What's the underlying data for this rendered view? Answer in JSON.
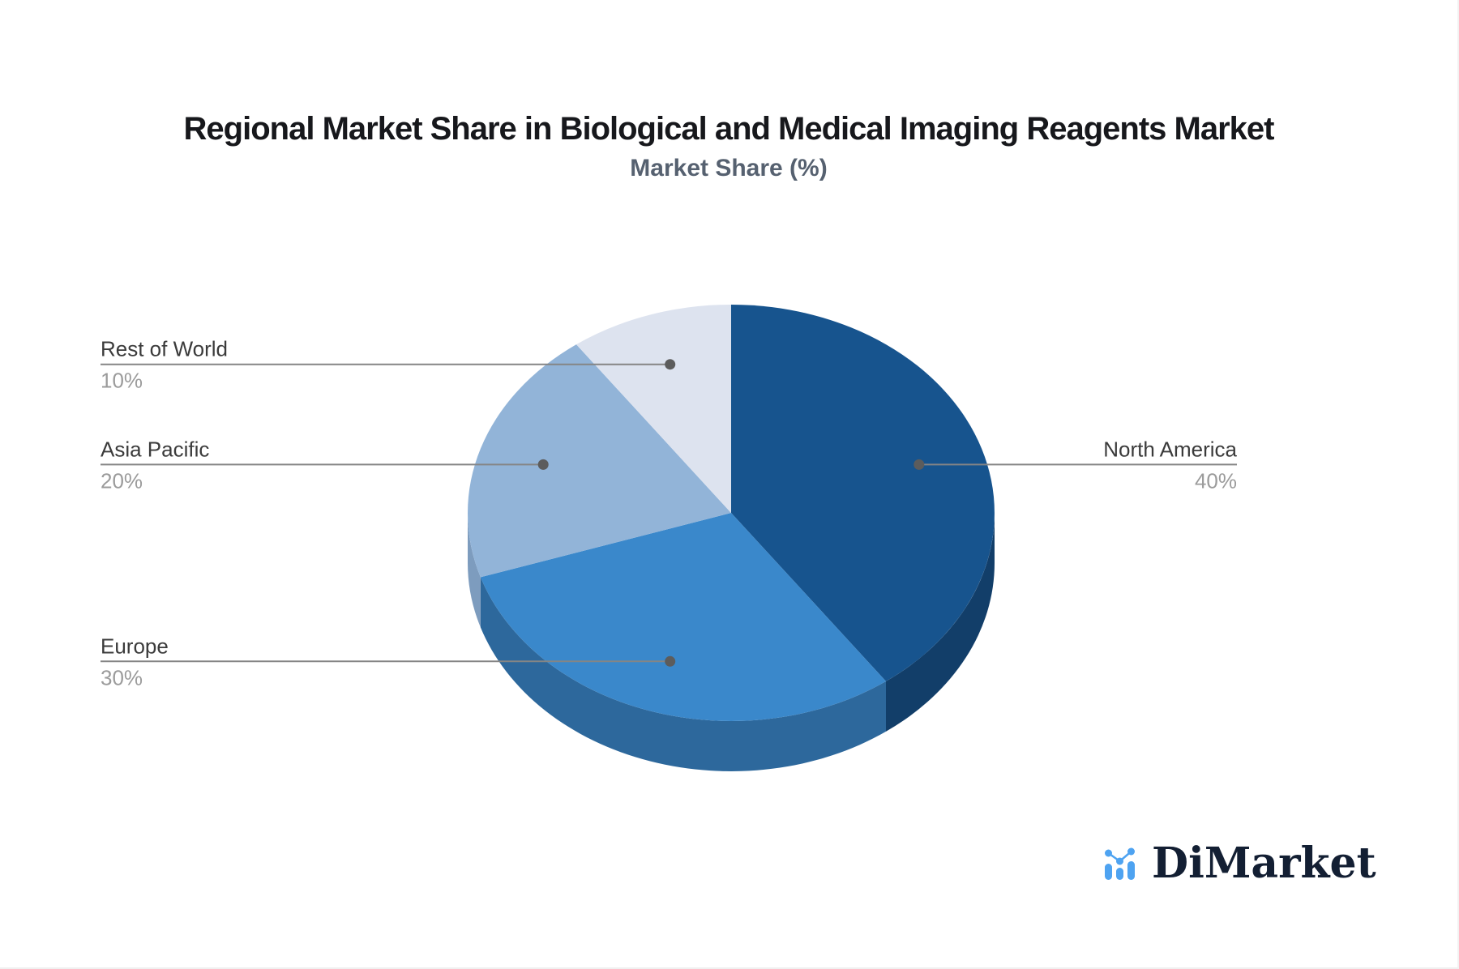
{
  "page": {
    "background": "#ffffff"
  },
  "header": {
    "title": "Regional Market Share in Biological and Medical Imaging Reagents Market",
    "subtitle": "Market Share (%)",
    "title_color": "#17181c",
    "subtitle_color": "#566170"
  },
  "chart_data": {
    "type": "pie",
    "style_3d": true,
    "title": "Regional Market Share in Biological and Medical Imaging Reagents Market",
    "subtitle": "Market Share (%)",
    "unit": "%",
    "start_angle": "top",
    "direction": "clockwise",
    "legend_position": "none",
    "categories": [
      "North America",
      "Europe",
      "Asia Pacific",
      "Rest of World"
    ],
    "values": [
      40,
      30,
      20,
      10
    ],
    "slices": [
      {
        "label": "North America",
        "value": 40,
        "display_value": "40%",
        "color": "#17548E",
        "side_color": "#123E69",
        "label_side": "right"
      },
      {
        "label": "Europe",
        "value": 30,
        "display_value": "30%",
        "color": "#3A88CB",
        "side_color": "#2D689C",
        "label_side": "left"
      },
      {
        "label": "Asia Pacific",
        "value": 20,
        "display_value": "20%",
        "color": "#92B4D8",
        "side_color": "#7D9CBE",
        "label_side": "left"
      },
      {
        "label": "Rest of World",
        "value": 10,
        "display_value": "10%",
        "color": "#DDE3EF",
        "side_color": "#C9D3E3",
        "label_side": "left"
      }
    ],
    "label_text_color": "#3b3b3b",
    "value_text_color": "#9b9b9b",
    "leader_line_color": "#858585",
    "leader_dot_color": "#5c5c5c"
  },
  "footer": {
    "brand": "DiMarket",
    "brand_color": "#131f33",
    "logo_icon": "bar-chart-trend-icon",
    "logo_icon_color": "#4EA3F1"
  }
}
